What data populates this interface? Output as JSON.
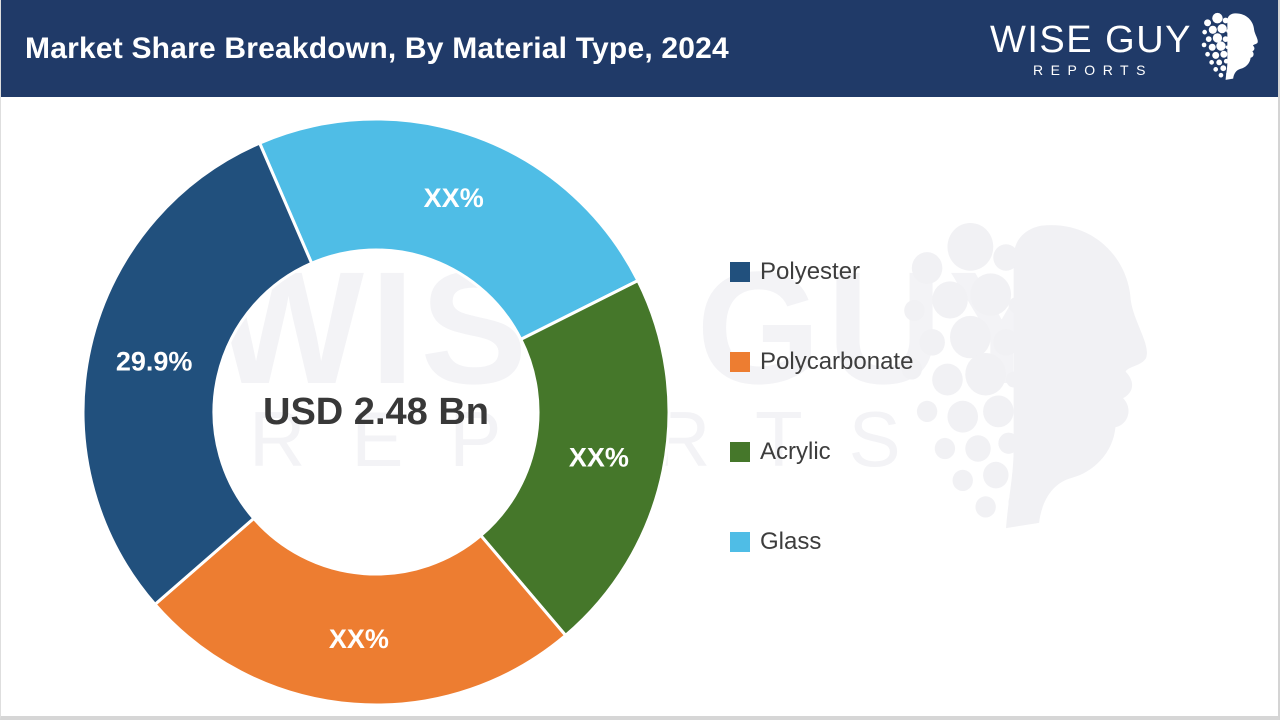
{
  "header": {
    "title": "Market Share Breakdown, By Material Type, 2024",
    "logo": {
      "line1": "WISE GUY",
      "line2": "REPORTS"
    }
  },
  "watermark": {
    "line1": "WISE GUY",
    "line2": "REPORTS"
  },
  "chart_data": {
    "type": "pie",
    "subtype": "donut",
    "title": "Market Share Breakdown, By Material Type, 2024",
    "center_label": "USD 2.48 Bn",
    "start_angle_deg": -23.4,
    "direction": "clockwise",
    "inner_radius_ratio": 0.553,
    "legend_position": "right",
    "slices": [
      {
        "name": "Polyester",
        "value_pct": 29.9,
        "pct_label": "29.9%",
        "color": "#21507d"
      },
      {
        "name": "Polycarbonate",
        "value_pct": 24.8,
        "pct_label": "XX%",
        "color": "#ed7d31"
      },
      {
        "name": "Acrylic",
        "value_pct": 21.2,
        "pct_label": "XX%",
        "color": "#45772a"
      },
      {
        "name": "Glass",
        "value_pct": 24.1,
        "pct_label": "XX%",
        "color": "#4fbde6"
      }
    ],
    "draw_order": [
      "Glass",
      "Acrylic",
      "Polycarbonate",
      "Polyester"
    ]
  },
  "colors": {
    "header_background": "#203a68",
    "title_text": "#ffffff",
    "center_text": "#383838",
    "legend_text": "#3d3d3d",
    "watermark": "#f3f3f6",
    "slice_separator": "#ffffff"
  }
}
